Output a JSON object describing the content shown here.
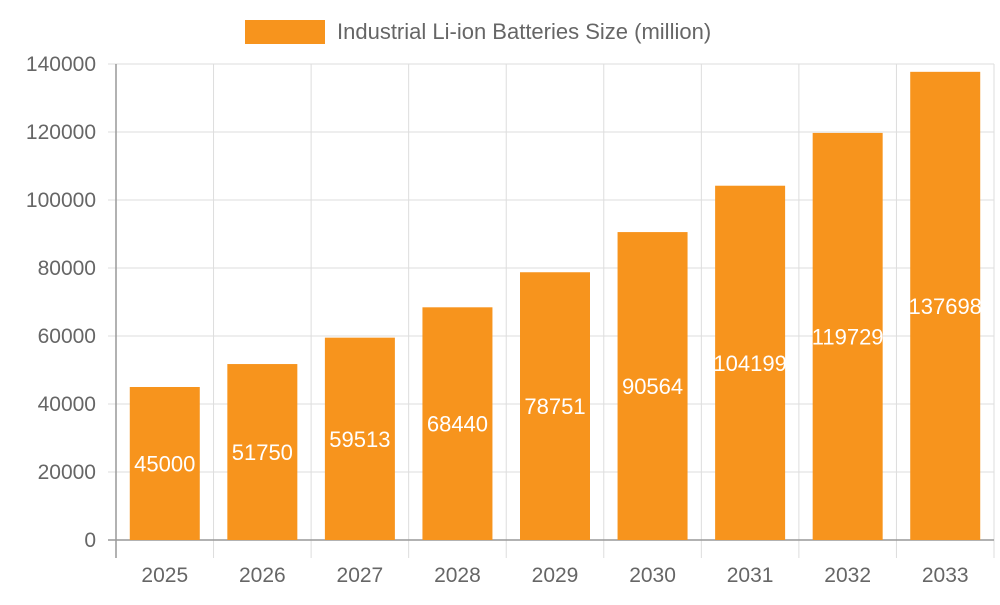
{
  "chart_data": {
    "type": "bar",
    "title": "",
    "xlabel": "",
    "ylabel": "",
    "categories": [
      "2025",
      "2026",
      "2027",
      "2028",
      "2029",
      "2030",
      "2031",
      "2032",
      "2033"
    ],
    "series": [
      {
        "name": "Industrial Li-ion Batteries Size (million)",
        "values": [
          45000,
          51750,
          59513,
          68440,
          78751,
          90564,
          104199,
          119729,
          137698
        ],
        "color": "#f7941d"
      }
    ],
    "ylim": [
      0,
      140000
    ],
    "yticks": [
      0,
      20000,
      40000,
      60000,
      80000,
      100000,
      120000,
      140000
    ],
    "grid": true,
    "legend_position": "top",
    "data_labels": true,
    "data_label_color": "#ffffff"
  }
}
